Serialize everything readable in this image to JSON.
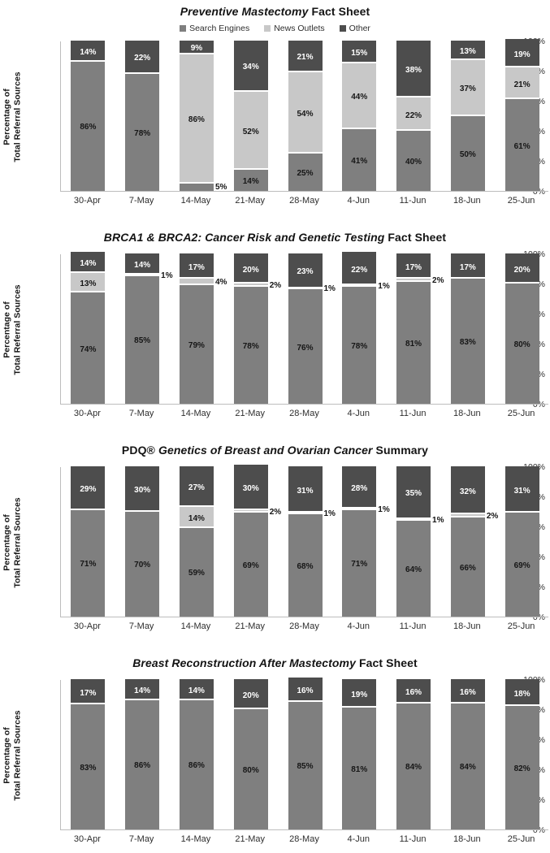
{
  "figure": {
    "background": "#ffffff",
    "y_axis": {
      "title_lines": [
        "Percentage of",
        "Total Referral Sources"
      ],
      "ticks": [
        "0%",
        "20%",
        "40%",
        "60%",
        "80%",
        "100%"
      ],
      "tick_values": [
        0,
        20,
        40,
        60,
        80,
        100
      ],
      "ylim": [
        0,
        100
      ]
    },
    "categories": [
      "30-Apr",
      "7-May",
      "14-May",
      "21-May",
      "28-May",
      "4-Jun",
      "11-Jun",
      "18-Jun",
      "25-Jun"
    ],
    "legend": {
      "position": "top-of-first-chart",
      "items": [
        {
          "label": "Search Engines",
          "color": "#7f7f7f"
        },
        {
          "label": "News Outlets",
          "color": "#c8c8c8"
        },
        {
          "label": "Other",
          "color": "#4d4d4d"
        }
      ]
    },
    "colors": {
      "search_engines": "#7f7f7f",
      "news_outlets": "#c8c8c8",
      "other": "#4d4d4d",
      "axis_line": "#bdbdbd",
      "label_on_dark": "#ffffff",
      "label_on_light": "#161616",
      "segment_separator": "#ffffff"
    },
    "value_label_format": "{v}%"
  },
  "chart_data": [
    {
      "id": "preventive-mastectomy",
      "type": "bar",
      "stacked": true,
      "show_legend": true,
      "title_parts": [
        {
          "text": "Preventive Mastectomy",
          "italic": true
        },
        {
          "text": " Fact Sheet",
          "italic": false
        }
      ],
      "categories": [
        "30-Apr",
        "7-May",
        "14-May",
        "21-May",
        "28-May",
        "4-Jun",
        "11-Jun",
        "18-Jun",
        "25-Jun"
      ],
      "ylim": [
        0,
        100
      ],
      "series": [
        {
          "name": "Search Engines",
          "values": [
            86,
            78,
            5,
            14,
            25,
            41,
            40,
            50,
            61
          ]
        },
        {
          "name": "News Outlets",
          "values": [
            0,
            0,
            86,
            52,
            54,
            44,
            22,
            37,
            21
          ]
        },
        {
          "name": "Other",
          "values": [
            14,
            22,
            9,
            34,
            21,
            15,
            38,
            13,
            19
          ]
        }
      ]
    },
    {
      "id": "brca1-brca2",
      "type": "bar",
      "stacked": true,
      "show_legend": false,
      "title_parts": [
        {
          "text": "BRCA1 & BRCA2: Cancer Risk and Genetic Testing",
          "italic": true
        },
        {
          "text": " Fact Sheet",
          "italic": false
        }
      ],
      "categories": [
        "30-Apr",
        "7-May",
        "14-May",
        "21-May",
        "28-May",
        "4-Jun",
        "11-Jun",
        "18-Jun",
        "25-Jun"
      ],
      "ylim": [
        0,
        100
      ],
      "series": [
        {
          "name": "Search Engines",
          "values": [
            74,
            85,
            79,
            78,
            76,
            78,
            81,
            83,
            80
          ]
        },
        {
          "name": "News Outlets",
          "values": [
            13,
            1,
            4,
            2,
            1,
            1,
            2,
            0,
            0
          ]
        },
        {
          "name": "Other",
          "values": [
            14,
            14,
            17,
            20,
            23,
            22,
            17,
            17,
            20
          ]
        }
      ]
    },
    {
      "id": "pdq-genetics",
      "type": "bar",
      "stacked": true,
      "show_legend": false,
      "title_parts": [
        {
          "text": "PDQ®",
          "italic": false
        },
        {
          "text": " Genetics of Breast and Ovarian Cancer",
          "italic": true
        },
        {
          "text": " Summary",
          "italic": false
        }
      ],
      "categories": [
        "30-Apr",
        "7-May",
        "14-May",
        "21-May",
        "28-May",
        "4-Jun",
        "11-Jun",
        "18-Jun",
        "25-Jun"
      ],
      "ylim": [
        0,
        100
      ],
      "series": [
        {
          "name": "Search Engines",
          "values": [
            71,
            70,
            59,
            69,
            68,
            71,
            64,
            66,
            69
          ]
        },
        {
          "name": "News Outlets",
          "values": [
            0,
            0,
            14,
            2,
            1,
            1,
            1,
            2,
            0
          ]
        },
        {
          "name": "Other",
          "values": [
            29,
            30,
            27,
            30,
            31,
            28,
            35,
            32,
            31
          ]
        }
      ]
    },
    {
      "id": "breast-reconstruction",
      "type": "bar",
      "stacked": true,
      "show_legend": false,
      "title_parts": [
        {
          "text": "Breast Reconstruction After Mastectomy",
          "italic": true
        },
        {
          "text": " Fact Sheet",
          "italic": false
        }
      ],
      "categories": [
        "30-Apr",
        "7-May",
        "14-May",
        "21-May",
        "28-May",
        "4-Jun",
        "11-Jun",
        "18-Jun",
        "25-Jun"
      ],
      "ylim": [
        0,
        100
      ],
      "series": [
        {
          "name": "Search Engines",
          "values": [
            83,
            86,
            86,
            80,
            85,
            81,
            84,
            84,
            82
          ]
        },
        {
          "name": "News Outlets",
          "values": [
            0,
            0,
            0,
            0,
            0,
            0,
            0,
            0,
            0
          ]
        },
        {
          "name": "Other",
          "values": [
            17,
            14,
            14,
            20,
            16,
            19,
            16,
            16,
            18
          ]
        }
      ]
    }
  ]
}
